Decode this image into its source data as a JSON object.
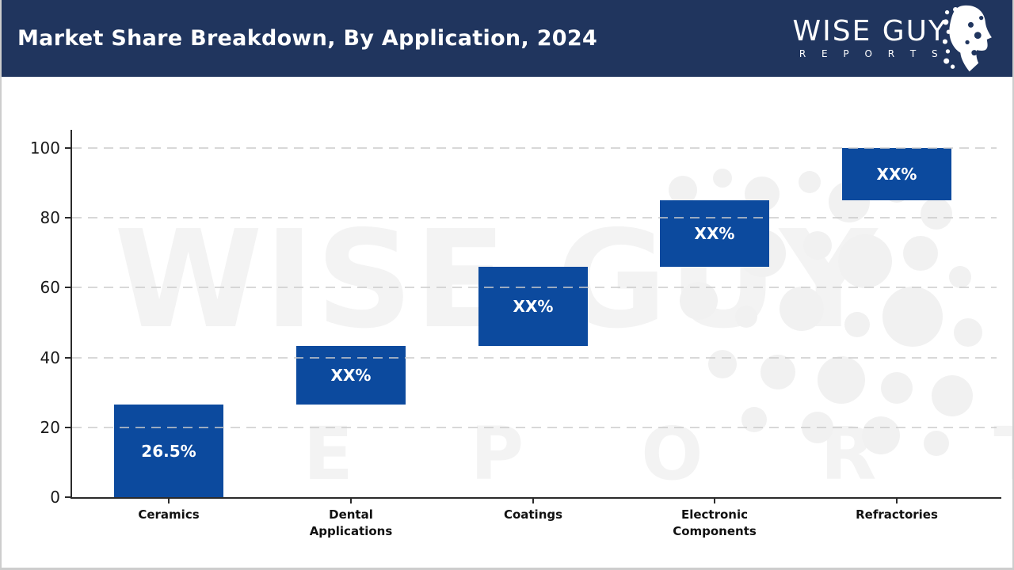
{
  "header": {
    "title": "Market Share Breakdown, By Application, 2024",
    "bg_color": "#20355e",
    "logo": {
      "name": "WISE GUY",
      "subtitle": "R E P O R T S"
    }
  },
  "watermark": {
    "name": "WISE GUY",
    "subtitle": "R E P O R T S"
  },
  "chart_data": {
    "type": "bar",
    "subtype": "waterfall",
    "title": "Market Share Breakdown, By Application, 2024",
    "categories": [
      "Ceramics",
      "Dental Applications",
      "Coatings",
      "Electronic Components",
      "Refractories"
    ],
    "segments": [
      {
        "category": "Ceramics",
        "start": 0,
        "end": 26.5,
        "label": "26.5%"
      },
      {
        "category": "Dental Applications",
        "start": 26.5,
        "end": 43.3,
        "label": "XX%"
      },
      {
        "category": "Coatings",
        "start": 43.3,
        "end": 66,
        "label": "XX%"
      },
      {
        "category": "Electronic Components",
        "start": 66,
        "end": 85,
        "label": "XX%"
      },
      {
        "category": "Refractories",
        "start": 85,
        "end": 100,
        "label": "XX%"
      }
    ],
    "y_ticks": [
      0,
      20,
      40,
      60,
      80,
      100
    ],
    "ylim": [
      0,
      100
    ],
    "xlabel": "",
    "ylabel": "",
    "grid": "horizontal-dashed",
    "legend": "none",
    "bar_color": "#0c4a9e",
    "axis_color": "#2b2b2b"
  }
}
